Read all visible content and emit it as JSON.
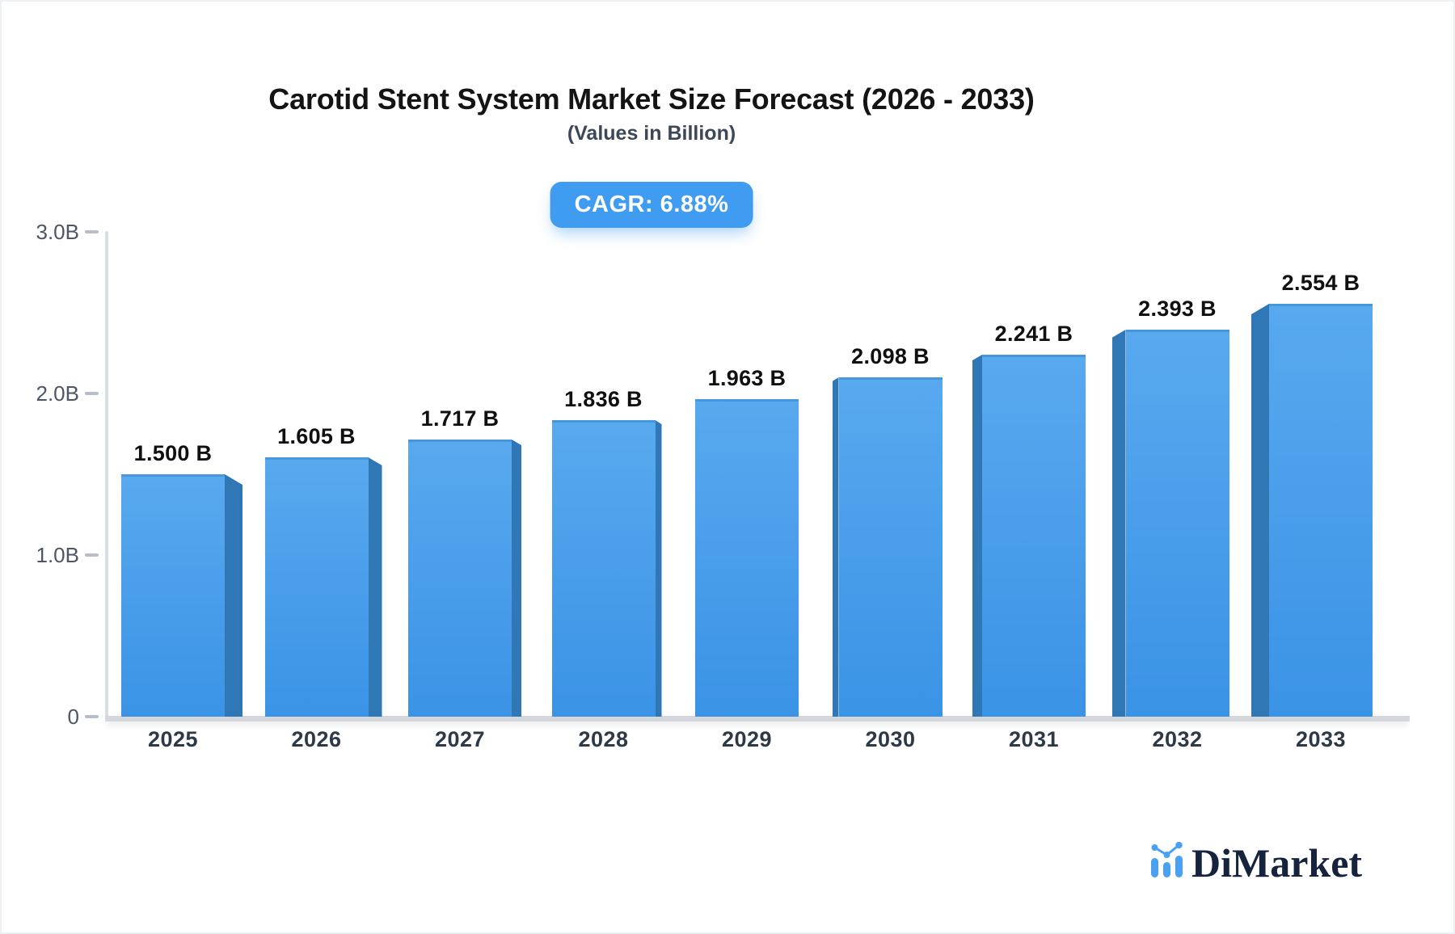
{
  "chart_data": {
    "type": "bar",
    "title": "Carotid Stent System Market Size Forecast (2026 - 2033)",
    "subtitle": "(Values in Billion)",
    "annotation": {
      "text": "CAGR: 6.88%",
      "badge_color": "#3f9cf0",
      "text_color": "#ffffff"
    },
    "categories": [
      "2025",
      "2026",
      "2027",
      "2028",
      "2029",
      "2030",
      "2031",
      "2032",
      "2033"
    ],
    "values": [
      1.5,
      1.605,
      1.717,
      1.836,
      1.963,
      2.098,
      2.241,
      2.393,
      2.554
    ],
    "value_labels": [
      "1.500 B",
      "1.605 B",
      "1.717 B",
      "1.836 B",
      "1.963 B",
      "2.098 B",
      "2.241 B",
      "2.393 B",
      "2.554 B"
    ],
    "xlabel": "",
    "ylabel": "",
    "ylim": [
      0,
      3
    ],
    "y_ticks": [
      {
        "label": "3.0B",
        "value": 3.0
      },
      {
        "label": "2.0B",
        "value": 2.0
      },
      {
        "label": "1.0B",
        "value": 1.0
      },
      {
        "label": "0",
        "value": 0
      }
    ],
    "grid": false,
    "legend": false,
    "bar_style": {
      "fill_top": "#58a9ee",
      "fill_bottom": "#3b93e6",
      "side_face": "#2f77b5",
      "top_edge": "#4897dd"
    },
    "axis_color": "#d9dce1",
    "baseline_color": "#d4d7db"
  },
  "logo": {
    "brand": "DiMarket",
    "icon": "bar-chart-logo-icon",
    "icon_color": "#4aa1f2",
    "text_color": "#16233c"
  }
}
